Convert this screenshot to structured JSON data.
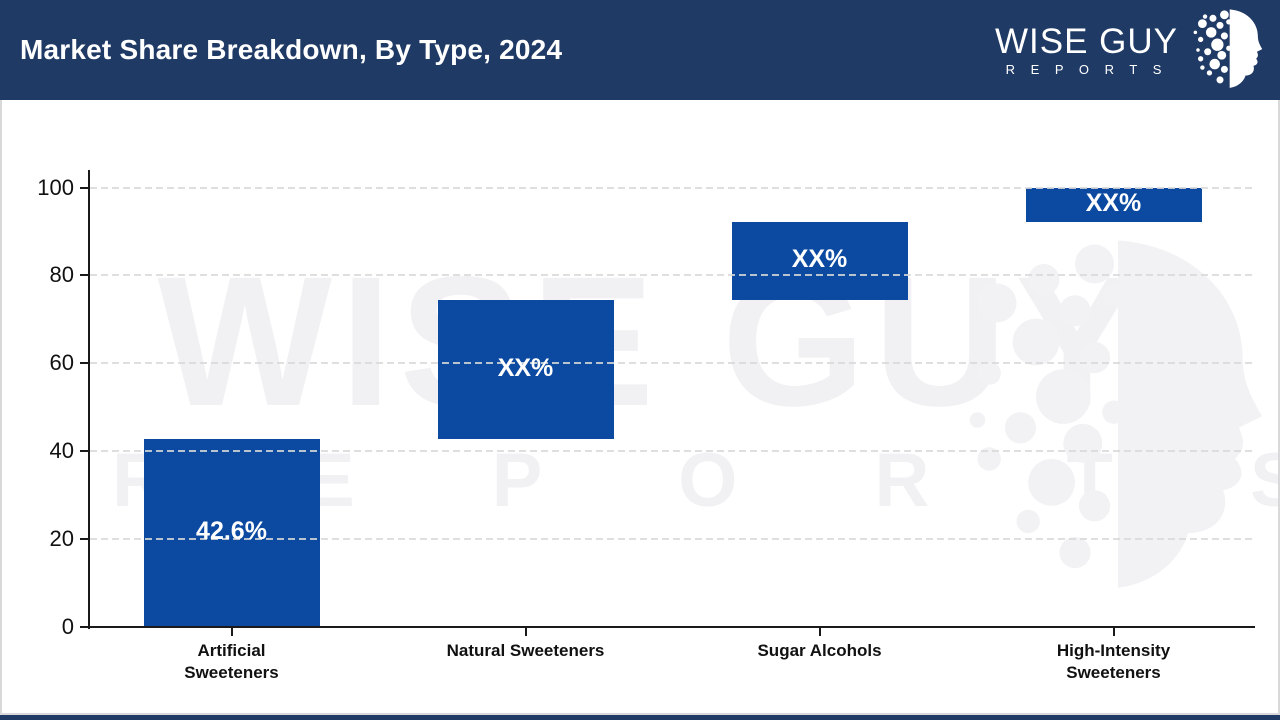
{
  "header": {
    "title": "Market Share Breakdown, By Type, 2024",
    "logo": {
      "line1": "WISE GUY",
      "line2": "R E P O R T S"
    }
  },
  "watermark": {
    "line1": "WISE GUY",
    "line2": "R E P O R T S"
  },
  "colors": {
    "header_bg": "#203a66",
    "bar": "#0c4aa1",
    "grid": "#d9d9d9",
    "axis": "#1a1a1a",
    "bar_label_text": "#ffffff",
    "watermark_text": "#f1f1f4"
  },
  "chart_data": {
    "type": "bar",
    "subtype": "waterfall",
    "title": "Market Share Breakdown, By Type, 2024",
    "categories": [
      "Artificial Sweeteners",
      "Natural Sweeteners",
      "Sugar Alcohols",
      "High-Intensity Sweeteners"
    ],
    "category_lines": [
      [
        "Artificial",
        "Sweeteners"
      ],
      [
        "Natural Sweeteners"
      ],
      [
        "Sugar Alcohols"
      ],
      [
        "High-Intensity",
        "Sweeteners"
      ]
    ],
    "series": [
      {
        "name": "Market share (%)",
        "segments": [
          {
            "category": "Artificial Sweeteners",
            "start": 0,
            "end": 42.6,
            "label": "42.6%"
          },
          {
            "category": "Natural Sweeteners",
            "start": 42.6,
            "end": 74.4,
            "label": "XX%"
          },
          {
            "category": "Sugar Alcohols",
            "start": 74.4,
            "end": 92.2,
            "label": "XX%"
          },
          {
            "category": "High-Intensity Sweeteners",
            "start": 92.2,
            "end": 100,
            "label": "XX%"
          }
        ]
      }
    ],
    "xlabel": "",
    "ylabel": "",
    "ylim": [
      0,
      100
    ],
    "y_ticks": [
      0,
      20,
      40,
      60,
      80,
      100
    ],
    "grid": "horizontal-dashed",
    "legend": "none"
  }
}
